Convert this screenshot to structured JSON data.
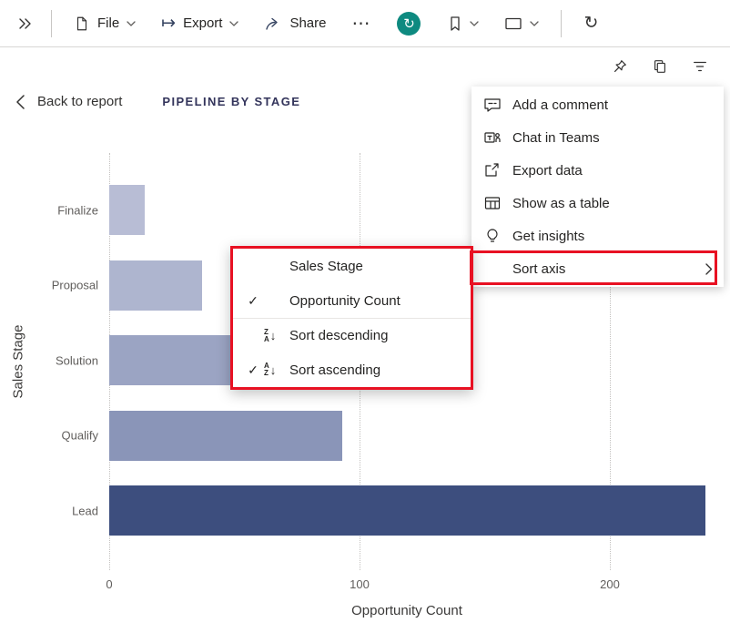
{
  "toolbar": {
    "file_label": "File",
    "export_label": "Export",
    "share_label": "Share"
  },
  "icons": {
    "more": "⋯",
    "sync": "↻",
    "refresh": "↻",
    "export_arrow": "↦"
  },
  "header": {
    "back_label": "Back to report",
    "title": "PIPELINE BY STAGE"
  },
  "menu": {
    "items": [
      {
        "label": "Add a comment",
        "icon": "comment-icon"
      },
      {
        "label": "Chat in Teams",
        "icon": "teams-icon"
      },
      {
        "label": "Export data",
        "icon": "export-data-icon"
      },
      {
        "label": "Show as a table",
        "icon": "table-icon"
      },
      {
        "label": "Get insights",
        "icon": "lightbulb-icon"
      },
      {
        "label": "Sort axis",
        "icon": "none"
      }
    ]
  },
  "submenu": {
    "items": [
      {
        "label": "Sales Stage",
        "check": ""
      },
      {
        "label": "Opportunity Count",
        "check": "✓"
      },
      {
        "label": "Sort descending",
        "check": "",
        "glyph_top": "Z",
        "glyph_bottom": "A",
        "glyph_arrow": "↓"
      },
      {
        "label": "Sort ascending",
        "check": "✓",
        "glyph_top": "A",
        "glyph_bottom": "Z",
        "glyph_arrow": "↓"
      }
    ]
  },
  "chart_data": {
    "type": "bar",
    "orientation": "horizontal",
    "title": "PIPELINE BY STAGE",
    "categories": [
      "Finalize",
      "Proposal",
      "Solution",
      "Qualify",
      "Lead"
    ],
    "values": [
      14,
      37,
      75,
      93,
      238
    ],
    "xlabel": "Opportunity Count",
    "ylabel": "Sales Stage",
    "xlim": [
      0,
      250
    ],
    "xticks": [
      0,
      100,
      200
    ],
    "grid": "dotted-vertical",
    "legend": "none",
    "bar_colors": [
      "#b8bdd5",
      "#aeb5cf",
      "#9ba4c3",
      "#8a95b8",
      "#3d4e7e"
    ]
  },
  "colors": {
    "annotation_red": "#e81123",
    "sync_teal": "#0e8a80",
    "title_navy": "#33345b",
    "lead_bar": "#3d4e7e"
  }
}
